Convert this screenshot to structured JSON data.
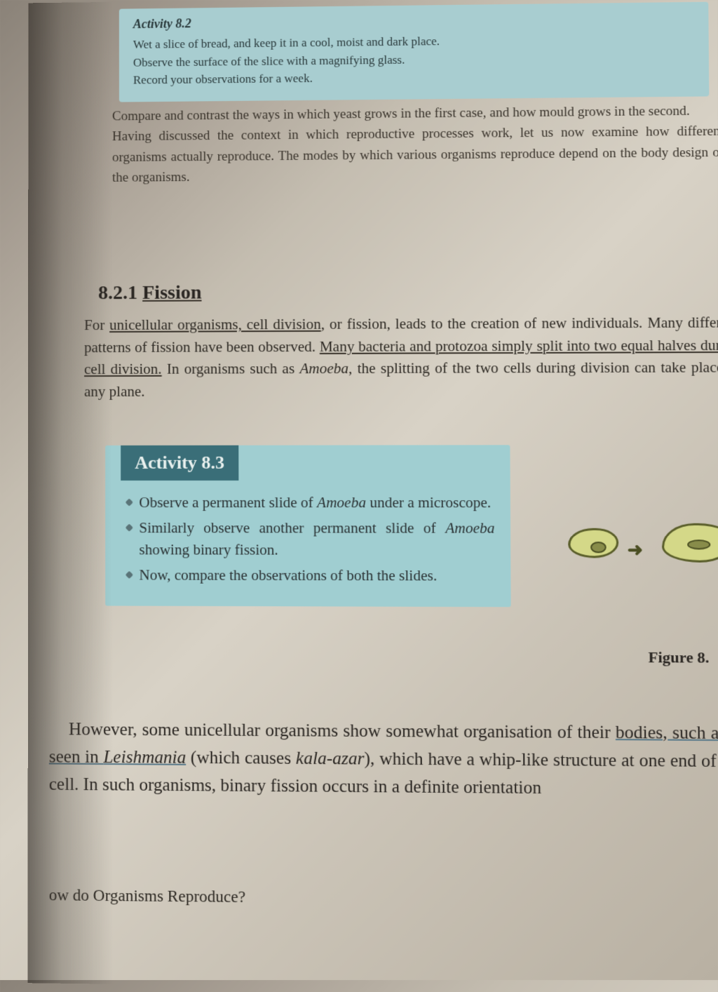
{
  "activity_top": {
    "label": "Activity 8.2",
    "line1": "Wet a slice of bread, and keep it in a cool, moist and dark place.",
    "line2": "Observe the surface of the slice with a magnifying glass.",
    "line3": "Record your observations for a week."
  },
  "compare_para": "Compare and contrast the ways in which yeast grows in the first case, and how mould grows in the second.\n    Having discussed the context in which reproductive processes work, let us now examine how different organisms actually reproduce. The modes by which various organisms reproduce depend on the body design of the organisms.",
  "section": {
    "number": "8.2.1",
    "title": "Fission"
  },
  "fission_para_parts": {
    "p1": "For ",
    "p2": "unicellular organisms, cell division",
    "p3": ", or fission, leads to the creation of new individuals. Many different patterns of fission have been observed. ",
    "p4": "Many bacteria and protozoa simply split into two equal halves during cell division.",
    "p5": " In organisms such as ",
    "p6": "Amoeba",
    "p7": ", the splitting of the two cells during division can take place in any plane."
  },
  "activity_box": {
    "label": "Activity 8.3",
    "items": [
      "Observe a permanent slide of Amoeba under a microscope.",
      "Similarly observe another permanent slide of Amoeba showing binary fission.",
      "Now, compare the observations of both the slides."
    ]
  },
  "figure_label": "Figure 8.",
  "however_para_parts": {
    "p1": "However, some unicellular organisms show somewhat organisation of their ",
    "p2": "bodies, such as is seen in ",
    "p3": "Leishmania",
    "p4": " (which causes ",
    "p5": "kala-azar",
    "p6": "), which have a whip-like structure at one end of the cell. In such organisms, binary fission occurs in a definite orientation"
  },
  "chapter_footer": "ow do Organisms Reproduce?",
  "colors": {
    "activity_bg": "#a8cdd0",
    "activity_label_bg": "#3a6e78",
    "text_dark": "#2a2622",
    "amoeba_fill": "#d4d888",
    "amoeba_border": "#5a5e2a"
  }
}
